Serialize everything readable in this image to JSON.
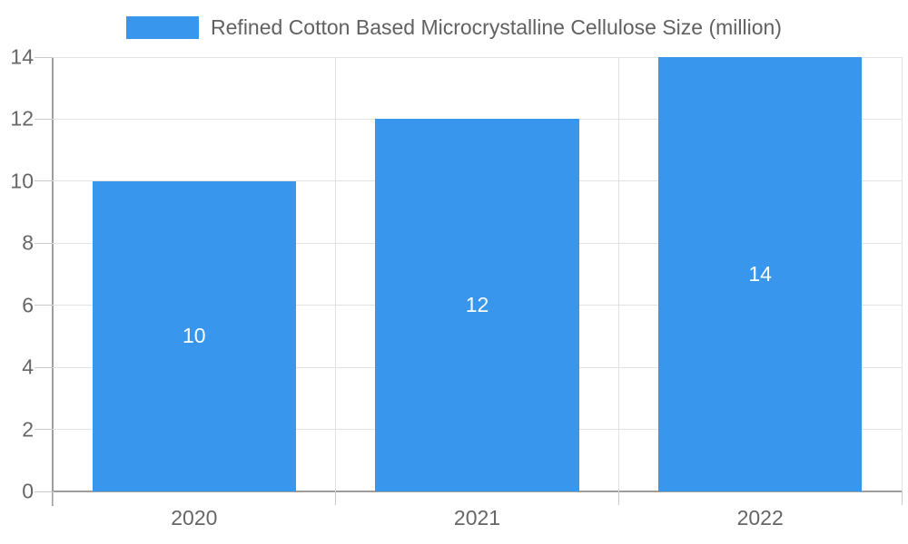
{
  "chart_data": {
    "type": "bar",
    "title": "",
    "legend_label": "Refined Cotton Based Microcrystalline Cellulose Size (million)",
    "legend_position": "top-center",
    "categories": [
      "2020",
      "2021",
      "2022"
    ],
    "values": [
      10,
      12,
      14
    ],
    "data_labels": [
      "10",
      "12",
      "14"
    ],
    "yticks": [
      0,
      2,
      4,
      6,
      8,
      10,
      12,
      14
    ],
    "ylim": [
      0,
      14
    ],
    "xlabel": "",
    "ylabel": "",
    "grid": true,
    "bar_width_fraction": 0.72,
    "colors": {
      "bar": "#3897EC",
      "bar_label": "#FFFFFF",
      "axis_text": "#666666",
      "legend_text": "#616161",
      "gridline": "#E3E3E3",
      "tick_mark": "#C9C9C9",
      "axis_line": "#9E9E9E",
      "background": "#FFFFFF"
    }
  }
}
